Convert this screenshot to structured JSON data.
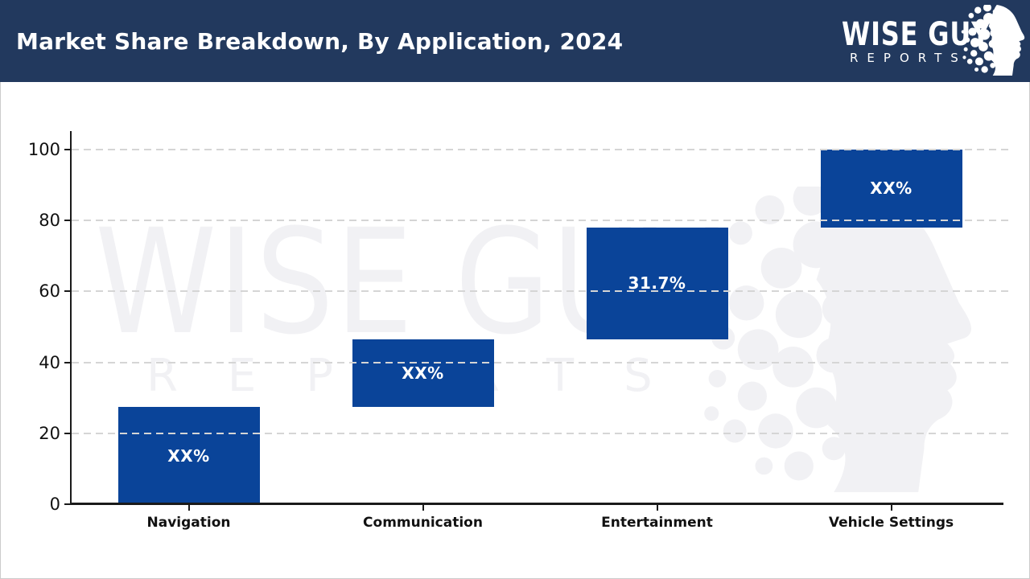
{
  "header": {
    "title": "Market Share Breakdown, By Application, 2024",
    "logo": {
      "primary": "WISE GUY",
      "secondary": "REPORTS"
    }
  },
  "watermark": {
    "primary": "WISE GUY",
    "secondary": "REPORTS"
  },
  "chart_data": {
    "type": "bar",
    "subtype": "waterfall",
    "title": "Market Share Breakdown, By Application, 2024",
    "categories": [
      "Navigation",
      "Communication",
      "Entertainment",
      "Vehicle Settings"
    ],
    "segments": [
      {
        "start": 0,
        "end": 27.4,
        "label": "XX%"
      },
      {
        "start": 27.4,
        "end": 46.4,
        "label": "XX%"
      },
      {
        "start": 46.4,
        "end": 78.1,
        "label": "31.7%"
      },
      {
        "start": 78.1,
        "end": 100,
        "label": "XX%"
      }
    ],
    "xlabel": "",
    "ylabel": "",
    "ylim": [
      0,
      100
    ],
    "yticks": [
      0,
      20,
      40,
      60,
      80,
      100
    ],
    "grid": "horizontal-dashed",
    "legend": "none",
    "bar_color": "#0a4499",
    "value_label_color": "#ffffff"
  },
  "colors": {
    "header_bg": "#22395e",
    "bar_blue": "#0a4499",
    "watermark_gray": "#f1f1f4",
    "gridline_gray": "#d5d5d5",
    "axis_black": "#1a1a1a",
    "page_bg": "#ffffff"
  }
}
